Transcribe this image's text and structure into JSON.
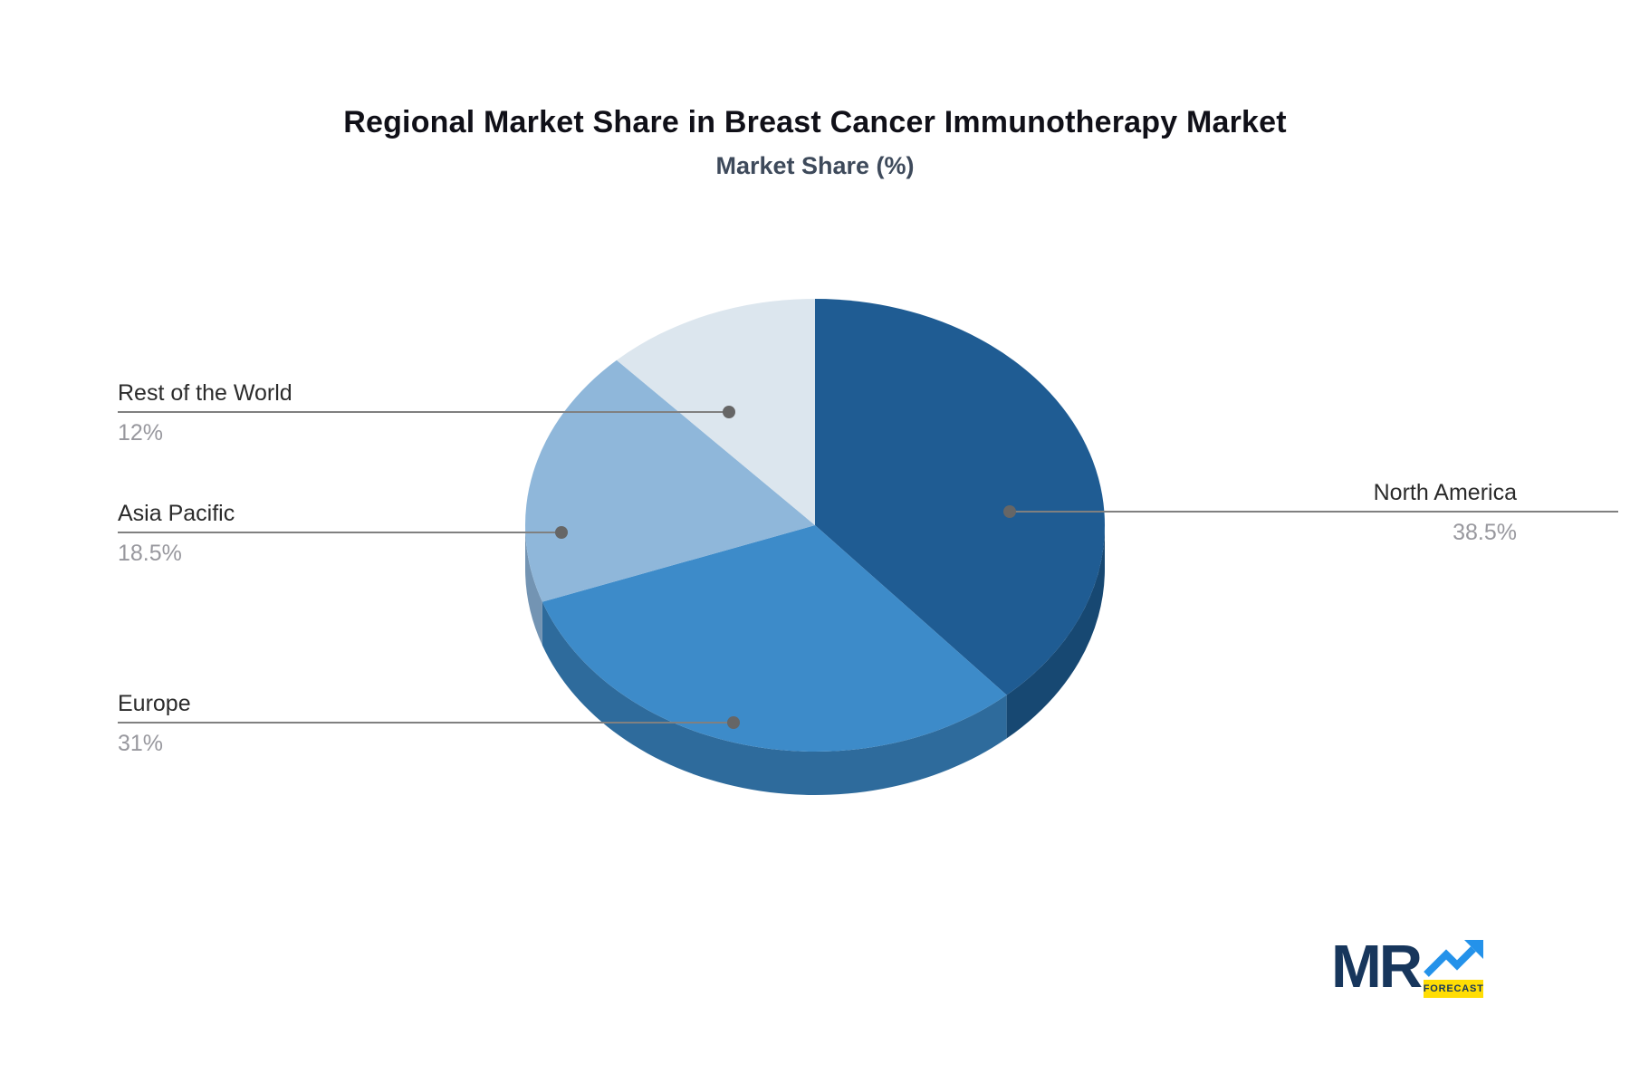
{
  "header": {
    "title": "Regional Market Share in Breast Cancer Immunotherapy Market",
    "subtitle": "Market Share (%)"
  },
  "chart_data": {
    "type": "pie",
    "title": "Regional Market Share in Breast Cancer Immunotherapy Market",
    "subtitle": "Market Share (%)",
    "unit": "%",
    "effect": "3d",
    "start_angle": "12-o-clock",
    "direction": "clockwise",
    "slices": [
      {
        "label": "North America",
        "value": 38.5,
        "display": "38.5%",
        "color": "#1f5c93",
        "rim": "#174872",
        "label_side": "right"
      },
      {
        "label": "Europe",
        "value": 31,
        "display": "31%",
        "color": "#3d8bc9",
        "rim": "#2e6b9c",
        "label_side": "left"
      },
      {
        "label": "Asia Pacific",
        "value": 18.5,
        "display": "18.5%",
        "color": "#8fb7da",
        "rim": "#7394b3",
        "label_side": "left"
      },
      {
        "label": "Rest of the World",
        "value": 12,
        "display": "12%",
        "color": "#dce6ee",
        "rim": "#b9c7d3",
        "label_side": "left"
      }
    ],
    "legend": "none",
    "grid": "off",
    "leader_line_color": "#808080",
    "leader_dot_color": "#666666",
    "label_color": "#2b2b2b",
    "value_color": "#98989e"
  },
  "logo": {
    "text": "MR",
    "badge": "FORECAST",
    "navy": "#17365c",
    "blue": "#2492ea",
    "yellow": "#ffdd04"
  }
}
